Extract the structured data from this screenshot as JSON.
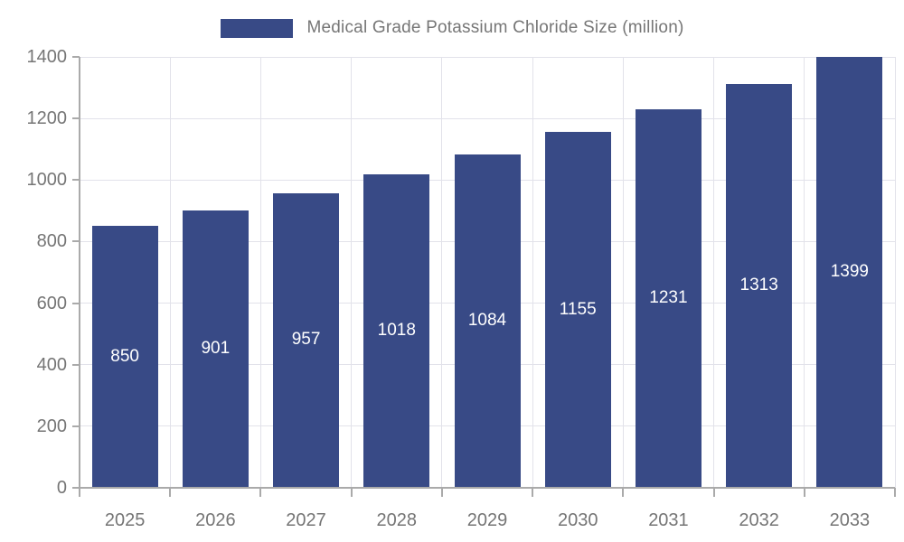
{
  "chart_data": {
    "type": "bar",
    "title": "",
    "legend": "Medical Grade Potassium Chloride Size (million)",
    "categories": [
      "2025",
      "2026",
      "2027",
      "2028",
      "2029",
      "2030",
      "2031",
      "2032",
      "2033"
    ],
    "values": [
      850,
      901,
      957,
      1018,
      1084,
      1155,
      1231,
      1313,
      1399
    ],
    "xlabel": "",
    "ylabel": "",
    "ylim": [
      0,
      1400
    ],
    "yticks": [
      0,
      200,
      400,
      600,
      800,
      1000,
      1200,
      1400
    ],
    "grid": true,
    "legend_position": "top",
    "colors": {
      "bar": "#384a86",
      "bar_value_label": "#ffffff",
      "axis_text": "#757575",
      "legend_text": "#767676",
      "grid_line": "#e2e2ea",
      "axis_line": "#aaaaaa"
    }
  }
}
